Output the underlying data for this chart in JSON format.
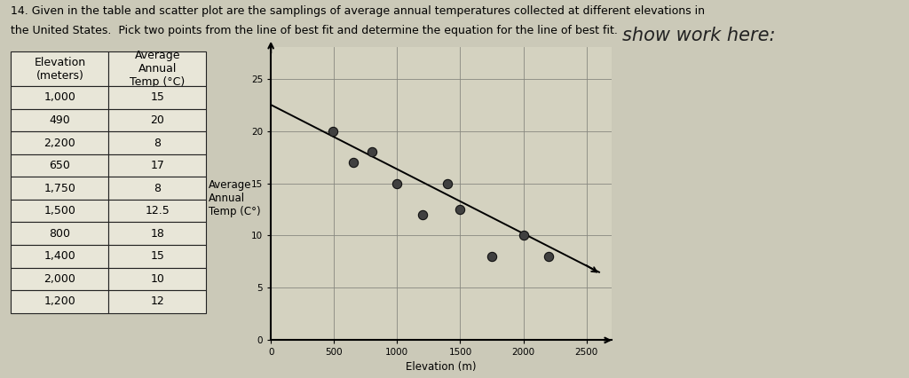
{
  "title_line1": "14. Given in the table and scatter plot are the samplings of average annual temperatures collected at different elevations in",
  "title_line2": "the United States.  Pick two points from the line of best fit and determine the equation for the line of best fit.",
  "show_work_text": "show work here:",
  "table_col1_header": "Elevation\n(meters)",
  "table_col2_header": "Average\nAnnual\nTemp (°C)",
  "table_data": [
    [
      "1,000",
      "15"
    ],
    [
      "490",
      "20"
    ],
    [
      "2,200",
      "8"
    ],
    [
      "650",
      "17"
    ],
    [
      "1,750",
      "8"
    ],
    [
      "1,500",
      "12.5"
    ],
    [
      "800",
      "18"
    ],
    [
      "1,400",
      "15"
    ],
    [
      "2,000",
      "10"
    ],
    [
      "1,200",
      "12"
    ]
  ],
  "scatter_x": [
    1000,
    490,
    2200,
    650,
    1750,
    1500,
    800,
    1400,
    2000,
    1200
  ],
  "scatter_y": [
    15,
    20,
    8,
    17,
    8,
    12.5,
    18,
    15,
    10,
    12
  ],
  "scatter_color": "#404040",
  "scatter_size": 55,
  "line_x0": 0,
  "line_y0": 22.5,
  "line_x1": 2600,
  "line_y1": 6.5,
  "line_color": "#000000",
  "line_width": 1.4,
  "xlabel": "Elevation (m)",
  "ylabel_line1": "Average",
  "ylabel_line2": "Annual",
  "ylabel_line3": "Temp (C°)",
  "xlim": [
    0,
    2700
  ],
  "ylim": [
    0,
    28
  ],
  "xticks": [
    0,
    500,
    1000,
    1500,
    2000,
    2500
  ],
  "yticks": [
    0,
    5,
    10,
    15,
    20,
    25
  ],
  "paper_color": "#cbc9b8",
  "plot_face_color": "#d4d2c0",
  "table_face_color": "#e8e6d8",
  "grid_color": "#888880",
  "title_fontsize": 9.0,
  "table_fontsize": 9.0,
  "axis_fontsize": 8.5,
  "ylabel_fontsize": 8.5,
  "show_work_fontsize": 15
}
